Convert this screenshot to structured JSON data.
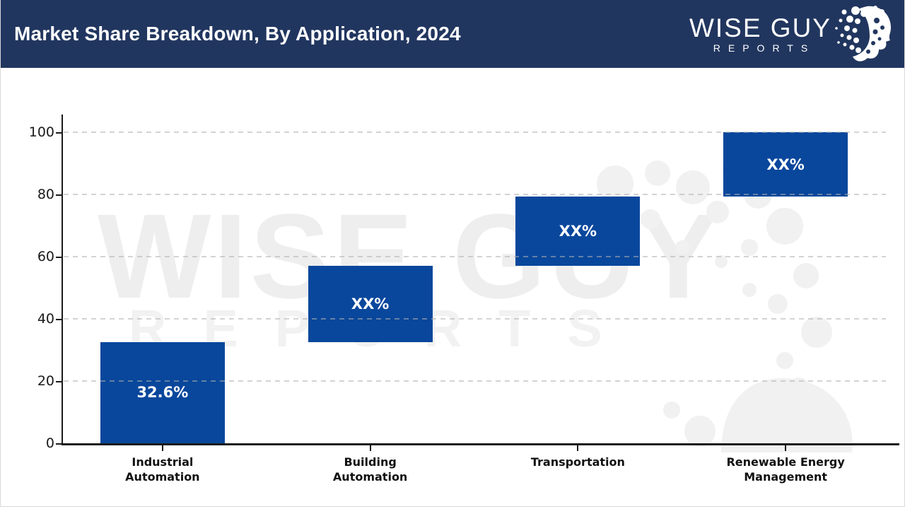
{
  "header": {
    "title": "Market Share Breakdown, By Application, 2024",
    "logo": {
      "line1": "WISE GUY",
      "line2": "REPORTS"
    }
  },
  "watermark": {
    "line1": "WISE GUY",
    "line2": "REPORTS"
  },
  "chart_data": {
    "type": "bar",
    "subtype": "floating-waterfall",
    "title": "Market Share Breakdown, By Application, 2024",
    "categories": [
      "Industrial Automation",
      "Building Automation",
      "Transportation",
      "Renewable Energy Management"
    ],
    "category_label_lines": [
      [
        "Industrial",
        "Automation"
      ],
      [
        "Building",
        "Automation"
      ],
      [
        "Transportation"
      ],
      [
        "Renewable Energy",
        "Management"
      ]
    ],
    "segments": [
      {
        "start": 0,
        "end": 32.6,
        "label": "32.6%"
      },
      {
        "start": 32.6,
        "end": 57.0,
        "label": "XX%"
      },
      {
        "start": 57.0,
        "end": 79.3,
        "label": "XX%"
      },
      {
        "start": 79.3,
        "end": 100,
        "label": "XX%"
      }
    ],
    "yticks": [
      0,
      20,
      40,
      60,
      80,
      100
    ],
    "ylim": [
      0,
      105.7
    ],
    "xlabel": "",
    "ylabel": "",
    "grid": "horizontal-dashed",
    "legend": "none",
    "bar_color": "#09479c",
    "value_label_color": "#ffffff"
  },
  "colors": {
    "header_bg": "#21365f",
    "bar": "#09479c",
    "grid": "#d9d9d9",
    "axis": "#1a1a1a",
    "watermark": "#eeeeee",
    "panel_border": "#d9d9d9"
  }
}
